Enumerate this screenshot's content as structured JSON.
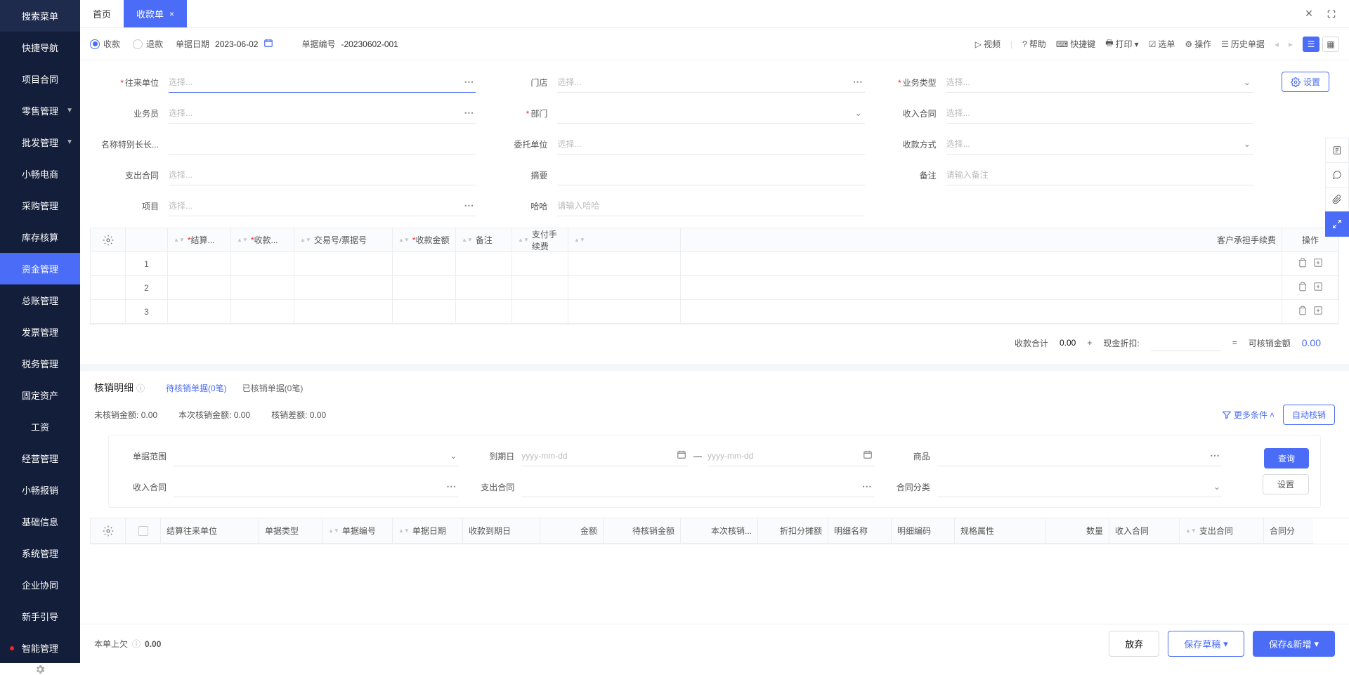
{
  "sidebar": {
    "items": [
      {
        "label": "搜索菜单",
        "active": false
      },
      {
        "label": "快捷导航",
        "active": false
      },
      {
        "label": "项目合同",
        "active": false
      },
      {
        "label": "零售管理",
        "active": false,
        "caret": true
      },
      {
        "label": "批发管理",
        "active": false,
        "caret": true
      },
      {
        "label": "小畅电商",
        "active": false
      },
      {
        "label": "采购管理",
        "active": false
      },
      {
        "label": "库存核算",
        "active": false
      },
      {
        "label": "资金管理",
        "active": true
      },
      {
        "label": "总账管理",
        "active": false
      },
      {
        "label": "发票管理",
        "active": false
      },
      {
        "label": "税务管理",
        "active": false
      },
      {
        "label": "固定资产",
        "active": false
      },
      {
        "label": "工资",
        "active": false
      },
      {
        "label": "经营管理",
        "active": false
      },
      {
        "label": "小畅报销",
        "active": false
      },
      {
        "label": "基础信息",
        "active": false
      },
      {
        "label": "系统管理",
        "active": false
      },
      {
        "label": "企业协同",
        "active": false
      },
      {
        "label": "新手引导",
        "active": false
      },
      {
        "label": "智能管理",
        "active": false,
        "dot": true
      }
    ]
  },
  "tabs": {
    "home": "首页",
    "current": "收款单"
  },
  "toolbar": {
    "opt_receipt": "收款",
    "opt_refund": "退款",
    "date_label": "单据日期",
    "date_value": "2023-06-02",
    "code_label": "单据编号",
    "code_value": "-20230602-001",
    "video": "视频",
    "help": "帮助",
    "shortcut": "快捷键",
    "print": "打印",
    "select": "选单",
    "operate": "操作",
    "history": "历史单据"
  },
  "form": {
    "counterparty": "往来单位",
    "store": "门店",
    "biztype": "业务类型",
    "salesman": "业务员",
    "dept": "部门",
    "income_contract": "收入合同",
    "longname": "名称特别长长...",
    "entrust": "委托单位",
    "receipt_method": "收款方式",
    "expense_contract": "支出合同",
    "summary": "摘要",
    "remark": "备注",
    "project": "项目",
    "haha": "哈哈",
    "ph_select": "选择...",
    "ph_remark": "请输入备注",
    "ph_haha": "请输入哈哈",
    "settings": "设置"
  },
  "table1": {
    "cols": {
      "settle": "结算...",
      "receipt": "收款...",
      "txn": "交易号/票据号",
      "amount": "收款金额",
      "note": "备注",
      "fee": "支付手续费",
      "custfee": "客户承担手续费",
      "op": "操作"
    },
    "rows": [
      1,
      2,
      3
    ]
  },
  "sum": {
    "total_label": "收款合计",
    "total_value": "0.00",
    "discount_label": "现金折扣:",
    "writable_label": "可核销金额",
    "writable_value": "0.00"
  },
  "hexiao": {
    "title": "核销明细",
    "pending": "待核销单据(0笔)",
    "done": "已核销单据(0笔)",
    "unwrite": "未核销金额:",
    "thiswrite": "本次核销金额:",
    "diff": "核销差额:",
    "val0": "0.00",
    "more": "更多条件",
    "auto": "自动核销",
    "scope": "单据范围",
    "due": "到期日",
    "goods": "商品",
    "income_contract": "收入合同",
    "expense_contract": "支出合同",
    "contract_cat": "合同分类",
    "date_ph": "yyyy-mm-dd",
    "query": "查询",
    "set": "设置"
  },
  "table2": {
    "cols": {
      "unit": "结算往来单位",
      "type": "单据类型",
      "code": "单据编号",
      "date": "单据日期",
      "duedate": "收款到期日",
      "amount": "金额",
      "pending_amount": "待核销金额",
      "this_write": "本次核销...",
      "discount": "折扣分摊额",
      "detail_name": "明细名称",
      "detail_code": "明细编码",
      "spec": "规格属性",
      "qty": "数量",
      "income_contract": "收入合同",
      "expense_contract": "支出合同",
      "contract_cat": "合同分"
    }
  },
  "footer": {
    "balance_label": "本单上欠",
    "balance_value": "0.00",
    "discard": "放弃",
    "draft": "保存草稿",
    "savenew": "保存&新增"
  }
}
